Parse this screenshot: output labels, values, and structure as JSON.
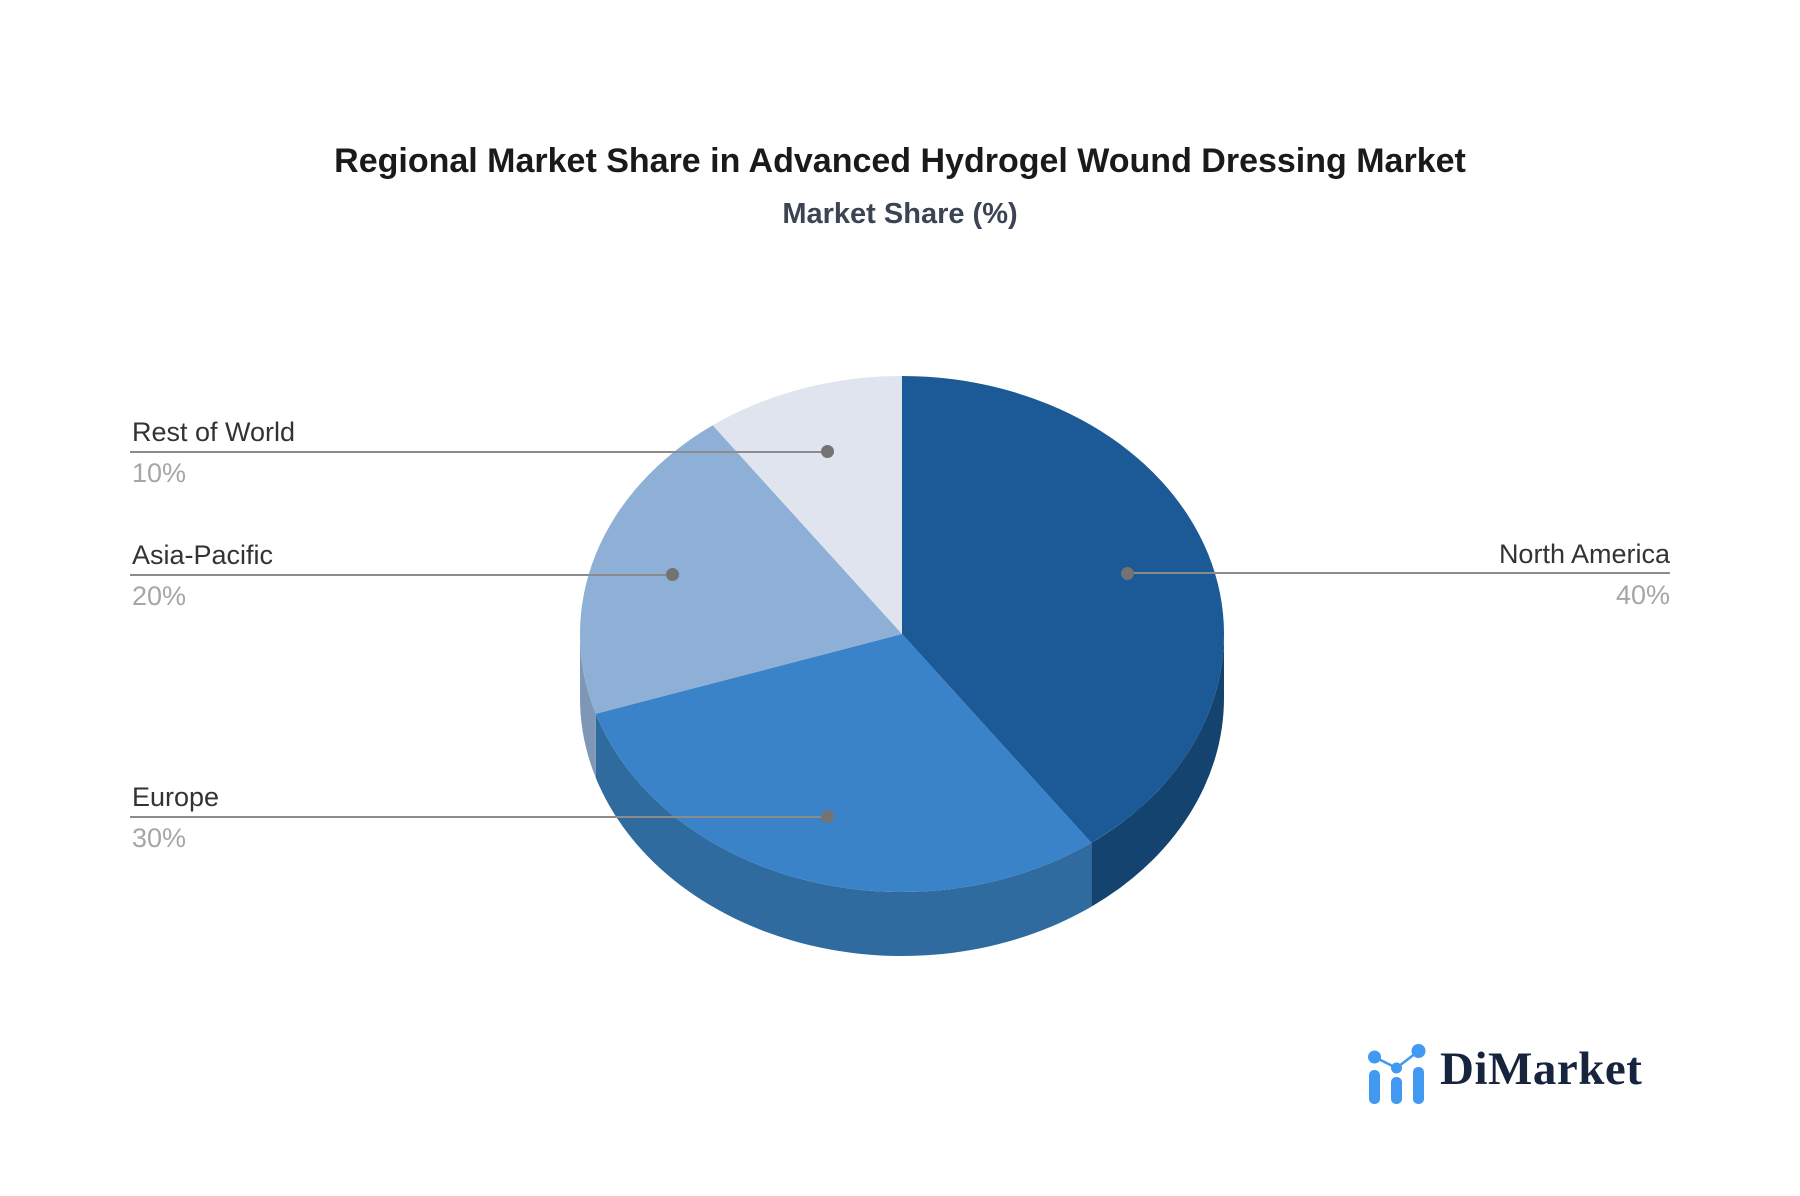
{
  "chart_data": {
    "type": "pie",
    "style": "3d",
    "title": "Regional Market Share in Advanced Hydrogel Wound Dressing Market",
    "subtitle": "Market Share (%)",
    "unit": "%",
    "labels": [
      "North America",
      "Europe",
      "Asia-Pacific",
      "Rest of World"
    ],
    "values": [
      40,
      30,
      20,
      10
    ],
    "display_values": [
      "40%",
      "30%",
      "20%",
      "10%"
    ],
    "colors": [
      "#1B5A96",
      "#3A83C9",
      "#8FB0D6",
      "#DFE4EE"
    ],
    "side_colors": [
      "#14436F",
      "#2F6B9E",
      "#7E97B6",
      "#C9D2E0"
    ],
    "start_angle": "12-o-clock",
    "direction": "clockwise",
    "legend_position": "none",
    "label_style": "callout-leader-lines"
  },
  "brand": {
    "name": "DiMarket",
    "icon": "bar-line-chart-icon",
    "accent_color": "#4299F1",
    "text_color": "#17243D"
  },
  "ui": {
    "background": "#FFFFFF",
    "label_color": "#333333",
    "value_color": "#A6A6A6",
    "leader_line_color": "#8C8C8C",
    "leader_dot_color": "#737373"
  }
}
